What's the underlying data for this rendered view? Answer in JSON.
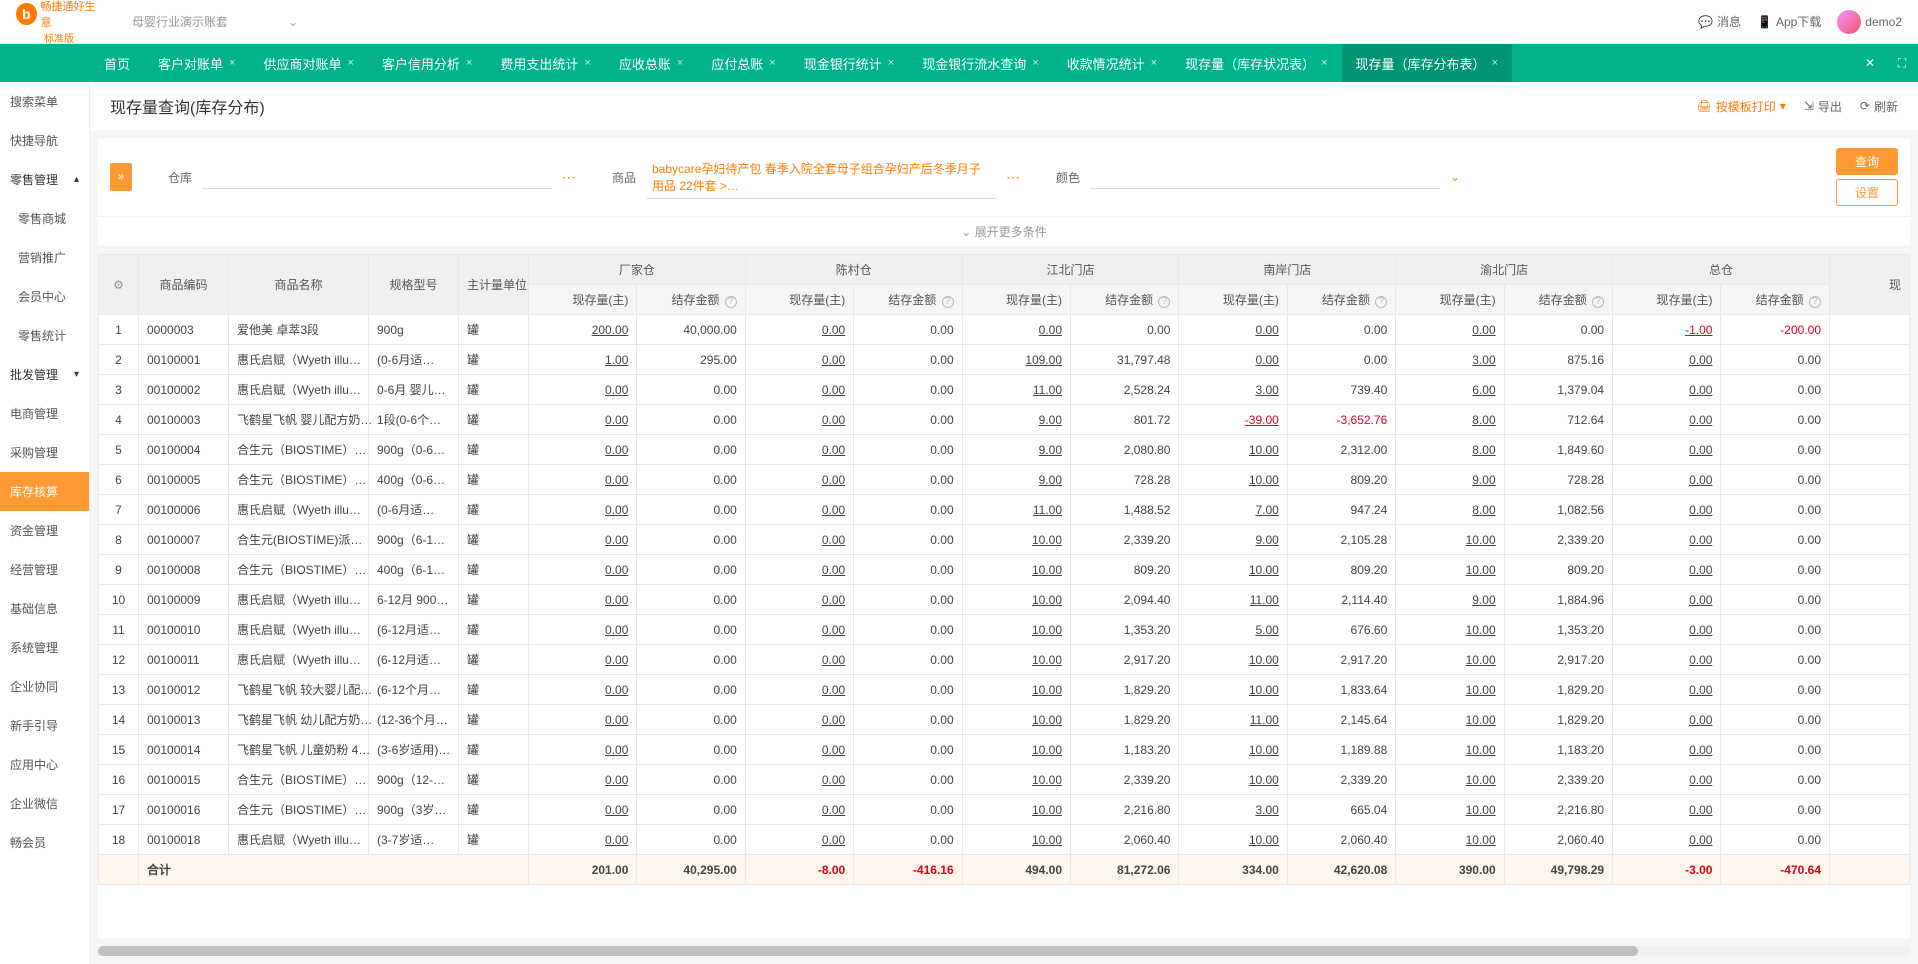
{
  "top": {
    "logo_text": "畅捷通好生意",
    "logo_sub": "标准版",
    "org_dropdown": "母婴行业演示账套",
    "msg": "消息",
    "app": "App下载",
    "user": "demo2"
  },
  "tabs": [
    {
      "label": "首页",
      "closable": false
    },
    {
      "label": "客户对账单",
      "closable": true
    },
    {
      "label": "供应商对账单",
      "closable": true
    },
    {
      "label": "客户信用分析",
      "closable": true
    },
    {
      "label": "费用支出统计",
      "closable": true
    },
    {
      "label": "应收总账",
      "closable": true
    },
    {
      "label": "应付总账",
      "closable": true
    },
    {
      "label": "现金银行统计",
      "closable": true
    },
    {
      "label": "现金银行流水查询",
      "closable": true
    },
    {
      "label": "收款情况统计",
      "closable": true
    },
    {
      "label": "现存量（库存状况表）",
      "closable": true
    },
    {
      "label": "现存量（库存分布表）",
      "closable": true,
      "active": true
    }
  ],
  "sidebar": [
    {
      "label": "搜索菜单",
      "type": "item"
    },
    {
      "label": "快捷导航",
      "type": "item"
    },
    {
      "label": "零售管理",
      "type": "group",
      "expanded": true
    },
    {
      "label": "零售商城",
      "type": "sub"
    },
    {
      "label": "营销推广",
      "type": "sub"
    },
    {
      "label": "会员中心",
      "type": "sub"
    },
    {
      "label": "零售统计",
      "type": "sub"
    },
    {
      "label": "批发管理",
      "type": "group"
    },
    {
      "label": "电商管理",
      "type": "item"
    },
    {
      "label": "采购管理",
      "type": "item"
    },
    {
      "label": "库存核算",
      "type": "item",
      "active": true
    },
    {
      "label": "资金管理",
      "type": "item"
    },
    {
      "label": "经营管理",
      "type": "item"
    },
    {
      "label": "基础信息",
      "type": "item"
    },
    {
      "label": "系统管理",
      "type": "item"
    },
    {
      "label": "企业协同",
      "type": "item"
    },
    {
      "label": "新手引导",
      "type": "item"
    },
    {
      "label": "应用中心",
      "type": "item"
    },
    {
      "label": "企业微信",
      "type": "item"
    },
    {
      "label": "畅会员",
      "type": "item"
    }
  ],
  "page": {
    "title": "现存量查询(库存分布)",
    "print": "按模板打印",
    "export": "导出",
    "refresh": "刷新"
  },
  "filters": {
    "warehouse_label": "仓库",
    "warehouse_value": "",
    "product_label": "商品",
    "product_value": "babycare孕妇待产包 春季入院全套母子组合孕妇产后冬季月子用品 22件套 >…",
    "color_label": "颜色",
    "color_value": "",
    "search_btn": "查询",
    "settings_btn": "设置",
    "expand": "展开更多条件"
  },
  "table": {
    "headers": {
      "idx": "",
      "gear": "⚙",
      "code": "商品编码",
      "name": "商品名称",
      "spec": "规格型号",
      "unit": "主计量单位",
      "groups": [
        "厂家仓",
        "陈村仓",
        "江北门店",
        "南岸门店",
        "渝北门店",
        "总仓"
      ],
      "qty": "现存量(主)",
      "amt": "结存金额",
      "extra": "现"
    },
    "rows": [
      {
        "idx": 1,
        "code": "0000003",
        "name": "爱他美 卓萃3段",
        "spec": "900g",
        "unit": "罐",
        "v": [
          [
            "200.00",
            "40,000.00"
          ],
          [
            "0.00",
            "0.00"
          ],
          [
            "0.00",
            "0.00"
          ],
          [
            "0.00",
            "0.00"
          ],
          [
            "0.00",
            "0.00"
          ],
          [
            "-1.00",
            "-200.00"
          ]
        ]
      },
      {
        "idx": 2,
        "code": "00100001",
        "name": "惠氏启赋（Wyeth illu…",
        "spec": "(0-6月适…",
        "unit": "罐",
        "v": [
          [
            "1.00",
            "295.00"
          ],
          [
            "0.00",
            "0.00"
          ],
          [
            "109.00",
            "31,797.48"
          ],
          [
            "0.00",
            "0.00"
          ],
          [
            "3.00",
            "875.16"
          ],
          [
            "0.00",
            "0.00"
          ]
        ]
      },
      {
        "idx": 3,
        "code": "00100002",
        "name": "惠氏启赋（Wyeth illu…",
        "spec": "0-6月 婴儿…",
        "unit": "罐",
        "v": [
          [
            "0.00",
            "0.00"
          ],
          [
            "0.00",
            "0.00"
          ],
          [
            "11.00",
            "2,528.24"
          ],
          [
            "3.00",
            "739.40"
          ],
          [
            "6.00",
            "1,379.04"
          ],
          [
            "0.00",
            "0.00"
          ]
        ]
      },
      {
        "idx": 4,
        "code": "00100003",
        "name": "飞鹤星飞帆 婴儿配方奶…",
        "spec": "1段(0-6个…",
        "unit": "罐",
        "v": [
          [
            "0.00",
            "0.00"
          ],
          [
            "0.00",
            "0.00"
          ],
          [
            "9.00",
            "801.72"
          ],
          [
            "-39.00",
            "-3,652.76"
          ],
          [
            "8.00",
            "712.64"
          ],
          [
            "0.00",
            "0.00"
          ]
        ]
      },
      {
        "idx": 5,
        "code": "00100004",
        "name": "合生元（BIOSTIME）…",
        "spec": "900g（0-6…",
        "unit": "罐",
        "v": [
          [
            "0.00",
            "0.00"
          ],
          [
            "0.00",
            "0.00"
          ],
          [
            "9.00",
            "2,080.80"
          ],
          [
            "10.00",
            "2,312.00"
          ],
          [
            "8.00",
            "1,849.60"
          ],
          [
            "0.00",
            "0.00"
          ]
        ]
      },
      {
        "idx": 6,
        "code": "00100005",
        "name": "合生元（BIOSTIME）…",
        "spec": "400g（0-6…",
        "unit": "罐",
        "v": [
          [
            "0.00",
            "0.00"
          ],
          [
            "0.00",
            "0.00"
          ],
          [
            "9.00",
            "728.28"
          ],
          [
            "10.00",
            "809.20"
          ],
          [
            "9.00",
            "728.28"
          ],
          [
            "0.00",
            "0.00"
          ]
        ]
      },
      {
        "idx": 7,
        "code": "00100006",
        "name": "惠氏启赋（Wyeth illu…",
        "spec": "(0-6月适…",
        "unit": "罐",
        "v": [
          [
            "0.00",
            "0.00"
          ],
          [
            "0.00",
            "0.00"
          ],
          [
            "11.00",
            "1,488.52"
          ],
          [
            "7.00",
            "947.24"
          ],
          [
            "8.00",
            "1,082.56"
          ],
          [
            "0.00",
            "0.00"
          ]
        ]
      },
      {
        "idx": 8,
        "code": "00100007",
        "name": "合生元(BIOSTIME)派…",
        "spec": "900g（6-1…",
        "unit": "罐",
        "v": [
          [
            "0.00",
            "0.00"
          ],
          [
            "0.00",
            "0.00"
          ],
          [
            "10.00",
            "2,339.20"
          ],
          [
            "9.00",
            "2,105.28"
          ],
          [
            "10.00",
            "2,339.20"
          ],
          [
            "0.00",
            "0.00"
          ]
        ]
      },
      {
        "idx": 9,
        "code": "00100008",
        "name": "合生元（BIOSTIME）…",
        "spec": "400g（6-1…",
        "unit": "罐",
        "v": [
          [
            "0.00",
            "0.00"
          ],
          [
            "0.00",
            "0.00"
          ],
          [
            "10.00",
            "809.20"
          ],
          [
            "10.00",
            "809.20"
          ],
          [
            "10.00",
            "809.20"
          ],
          [
            "0.00",
            "0.00"
          ]
        ]
      },
      {
        "idx": 10,
        "code": "00100009",
        "name": "惠氏启赋（Wyeth illu…",
        "spec": "6-12月 900…",
        "unit": "罐",
        "v": [
          [
            "0.00",
            "0.00"
          ],
          [
            "0.00",
            "0.00"
          ],
          [
            "10.00",
            "2,094.40"
          ],
          [
            "11.00",
            "2,114.40"
          ],
          [
            "9.00",
            "1,884.96"
          ],
          [
            "0.00",
            "0.00"
          ]
        ]
      },
      {
        "idx": 11,
        "code": "00100010",
        "name": "惠氏启赋（Wyeth illu…",
        "spec": "(6-12月适…",
        "unit": "罐",
        "v": [
          [
            "0.00",
            "0.00"
          ],
          [
            "0.00",
            "0.00"
          ],
          [
            "10.00",
            "1,353.20"
          ],
          [
            "5.00",
            "676.60"
          ],
          [
            "10.00",
            "1,353.20"
          ],
          [
            "0.00",
            "0.00"
          ]
        ]
      },
      {
        "idx": 12,
        "code": "00100011",
        "name": "惠氏启赋（Wyeth illu…",
        "spec": "(6-12月适…",
        "unit": "罐",
        "v": [
          [
            "0.00",
            "0.00"
          ],
          [
            "0.00",
            "0.00"
          ],
          [
            "10.00",
            "2,917.20"
          ],
          [
            "10.00",
            "2,917.20"
          ],
          [
            "10.00",
            "2,917.20"
          ],
          [
            "0.00",
            "0.00"
          ]
        ]
      },
      {
        "idx": 13,
        "code": "00100012",
        "name": "飞鹤星飞帆 较大婴儿配…",
        "spec": "(6-12个月…",
        "unit": "罐",
        "v": [
          [
            "0.00",
            "0.00"
          ],
          [
            "0.00",
            "0.00"
          ],
          [
            "10.00",
            "1,829.20"
          ],
          [
            "10.00",
            "1,833.64"
          ],
          [
            "10.00",
            "1,829.20"
          ],
          [
            "0.00",
            "0.00"
          ]
        ]
      },
      {
        "idx": 14,
        "code": "00100013",
        "name": "飞鹤星飞帆 幼儿配方奶…",
        "spec": "(12-36个月…",
        "unit": "罐",
        "v": [
          [
            "0.00",
            "0.00"
          ],
          [
            "0.00",
            "0.00"
          ],
          [
            "10.00",
            "1,829.20"
          ],
          [
            "11.00",
            "2,145.64"
          ],
          [
            "10.00",
            "1,829.20"
          ],
          [
            "0.00",
            "0.00"
          ]
        ]
      },
      {
        "idx": 15,
        "code": "00100014",
        "name": "飞鹤星飞帆 儿童奶粉 4…",
        "spec": "(3-6岁适用)…",
        "unit": "罐",
        "v": [
          [
            "0.00",
            "0.00"
          ],
          [
            "0.00",
            "0.00"
          ],
          [
            "10.00",
            "1,183.20"
          ],
          [
            "10.00",
            "1,189.88"
          ],
          [
            "10.00",
            "1,183.20"
          ],
          [
            "0.00",
            "0.00"
          ]
        ]
      },
      {
        "idx": 16,
        "code": "00100015",
        "name": "合生元（BIOSTIME）…",
        "spec": "900g（12-…",
        "unit": "罐",
        "v": [
          [
            "0.00",
            "0.00"
          ],
          [
            "0.00",
            "0.00"
          ],
          [
            "10.00",
            "2,339.20"
          ],
          [
            "10.00",
            "2,339.20"
          ],
          [
            "10.00",
            "2,339.20"
          ],
          [
            "0.00",
            "0.00"
          ]
        ]
      },
      {
        "idx": 17,
        "code": "00100016",
        "name": "合生元（BIOSTIME）…",
        "spec": "900g（3岁…",
        "unit": "罐",
        "v": [
          [
            "0.00",
            "0.00"
          ],
          [
            "0.00",
            "0.00"
          ],
          [
            "10.00",
            "2,216.80"
          ],
          [
            "3.00",
            "665.04"
          ],
          [
            "10.00",
            "2,216.80"
          ],
          [
            "0.00",
            "0.00"
          ]
        ]
      },
      {
        "idx": 18,
        "code": "00100018",
        "name": "惠氏启赋（Wyeth illu…",
        "spec": "(3-7岁适…",
        "unit": "罐",
        "v": [
          [
            "0.00",
            "0.00"
          ],
          [
            "0.00",
            "0.00"
          ],
          [
            "10.00",
            "2,060.40"
          ],
          [
            "10.00",
            "2,060.40"
          ],
          [
            "10.00",
            "2,060.40"
          ],
          [
            "0.00",
            "0.00"
          ]
        ]
      }
    ],
    "total": {
      "label": "合计",
      "v": [
        [
          "201.00",
          "40,295.00"
        ],
        [
          "-8.00",
          "-416.16"
        ],
        [
          "494.00",
          "81,272.06"
        ],
        [
          "334.00",
          "42,620.08"
        ],
        [
          "390.00",
          "49,798.29"
        ],
        [
          "-3.00",
          "-470.64"
        ]
      ]
    }
  }
}
